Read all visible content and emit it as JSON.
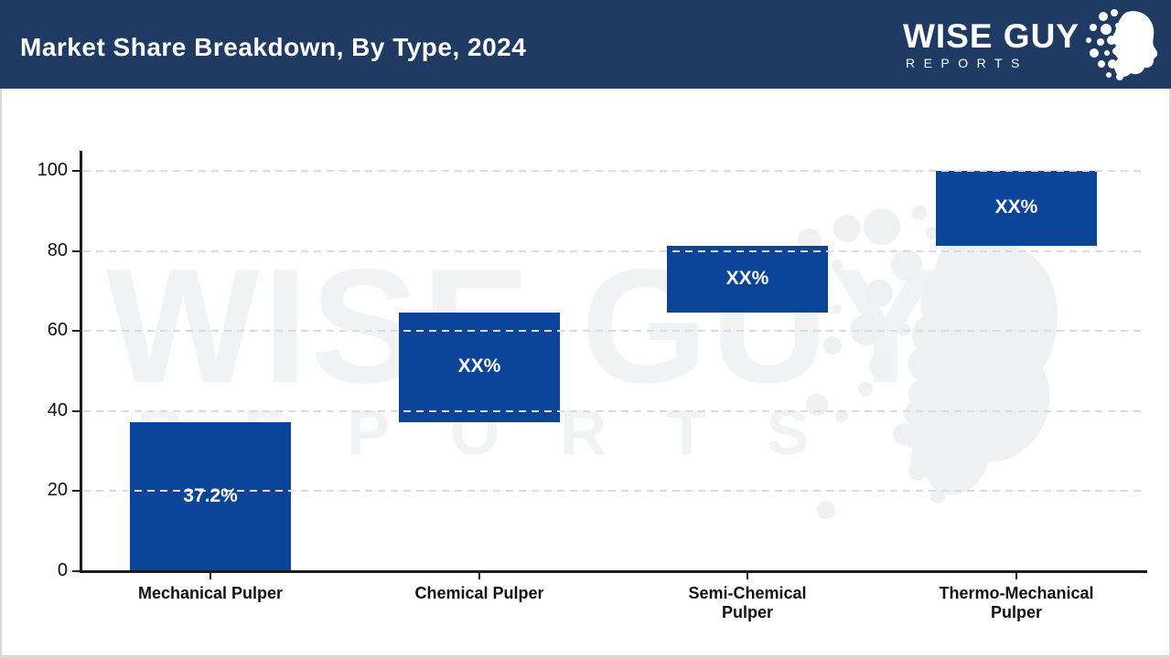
{
  "header": {
    "title": "Market Share Breakdown, By Type, 2024",
    "logo": {
      "line1": "WISE GUY",
      "line2": "REPORTS"
    }
  },
  "watermark": {
    "line1": "WISE GUY",
    "line2": "REPORTS"
  },
  "colors": {
    "header_bg": "#1f3a63",
    "bar_blue": "#0b4499",
    "axis": "#1c1c1c",
    "gridline": "#dcdcdc",
    "watermark": "#f1f2f4",
    "page_border": "#d8d8d8"
  },
  "chart_data": {
    "type": "bar",
    "variant": "stacked-waterfall",
    "title": "Market Share Breakdown, By Type, 2024",
    "categories": [
      "Mechanical Pulper",
      "Chemical Pulper",
      "Semi-Chemical Pulper",
      "Thermo-Mechanical Pulper"
    ],
    "category_lines": [
      [
        "Mechanical Pulper"
      ],
      [
        "Chemical Pulper"
      ],
      [
        "Semi-Chemical",
        "Pulper"
      ],
      [
        "Thermo-Mechanical",
        "Pulper"
      ]
    ],
    "segments": [
      {
        "category": "Mechanical Pulper",
        "start": 0,
        "end": 37.2,
        "label": "37.2%"
      },
      {
        "category": "Chemical Pulper",
        "start": 37.2,
        "end": 64.6,
        "label": "XX%"
      },
      {
        "category": "Semi-Chemical Pulper",
        "start": 64.6,
        "end": 81.2,
        "label": "XX%"
      },
      {
        "category": "Thermo-Mechanical Pulper",
        "start": 81.2,
        "end": 100,
        "label": "XX%"
      }
    ],
    "xlabel": "",
    "ylabel": "",
    "ylim": [
      0,
      100
    ],
    "yticks": [
      0,
      20,
      40,
      60,
      80,
      100
    ],
    "grid": "dashed-horizontal",
    "legend": "none",
    "bar_color": "#0b4499",
    "bar_label_color": "#ffffff"
  }
}
